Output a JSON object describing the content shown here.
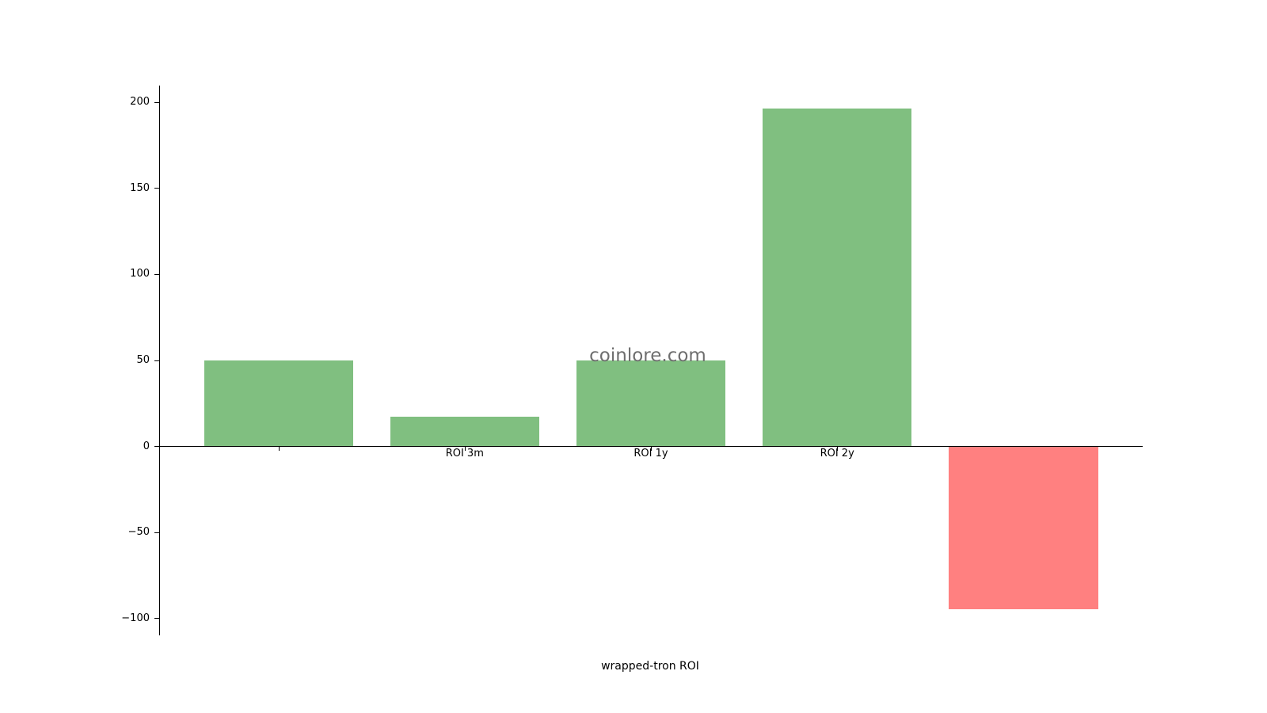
{
  "chart_data": {
    "type": "bar",
    "title": "",
    "xlabel": "wrapped-tron ROI",
    "ylabel": "",
    "watermark": "coinlore.com",
    "categories": [
      "",
      "ROI 3m",
      "ROI 1y",
      "ROI 2y",
      ""
    ],
    "values": [
      50,
      17,
      50,
      196,
      -95
    ],
    "bar_colors": [
      "#80bf80",
      "#80bf80",
      "#80bf80",
      "#80bf80",
      "#ff8080"
    ],
    "x_ticks_visible": [
      true,
      true,
      true,
      true,
      false
    ],
    "y_ticks": [
      200,
      150,
      100,
      50,
      0,
      -50,
      -100
    ],
    "y_tick_labels": [
      "200",
      "150",
      "100",
      "50",
      "0",
      "−50",
      "−100"
    ],
    "ylim": [
      -110,
      209.5
    ],
    "xlim": [
      -0.64,
      4.64
    ],
    "bar_width": 0.8,
    "grid": false,
    "legend_position": "none",
    "colors": {
      "positive": "#80bf80",
      "negative": "#ff8080",
      "axis": "#000000",
      "tick_label": "#000000",
      "watermark": "#6e6e6e",
      "background": "#ffffff"
    }
  }
}
